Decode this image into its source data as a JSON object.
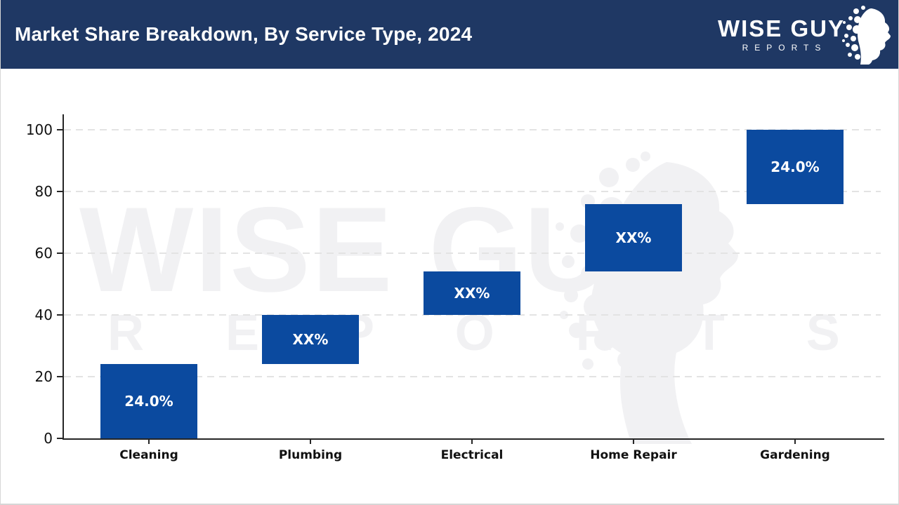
{
  "header": {
    "title": "Market Share Breakdown, By Service Type, 2024",
    "bg_color": "#1f3864",
    "logo": {
      "line1": "WISE GUY",
      "line2": "REPORTS"
    }
  },
  "watermark": {
    "line1": "WISE GUY",
    "line2": "REPORTS",
    "color": "#f1f1f3"
  },
  "chart_data": {
    "type": "bar",
    "subtype": "waterfall",
    "title": "Market Share Breakdown, By Service Type, 2024",
    "categories": [
      "Cleaning",
      "Plumbing",
      "Electrical",
      "Home Repair",
      "Gardening"
    ],
    "segments": [
      {
        "category": "Cleaning",
        "start": 0,
        "end": 24,
        "label": "24.0%"
      },
      {
        "category": "Plumbing",
        "start": 24,
        "end": 40,
        "label": "XX%"
      },
      {
        "category": "Electrical",
        "start": 40,
        "end": 54,
        "label": "XX%"
      },
      {
        "category": "Home Repair",
        "start": 54,
        "end": 76,
        "label": "XX%"
      },
      {
        "category": "Gardening",
        "start": 76,
        "end": 100,
        "label": "24.0%"
      }
    ],
    "xlabel": "",
    "ylabel": "",
    "ylim": [
      0,
      100
    ],
    "yticks": [
      0,
      20,
      40,
      60,
      80,
      100
    ],
    "grid": "horizontal-dashed",
    "legend": "none",
    "bar_color": "#0b4a9f",
    "bar_label_color": "#ffffff",
    "gridline_color": "#e3e3e3",
    "axis_color": "#262626"
  }
}
